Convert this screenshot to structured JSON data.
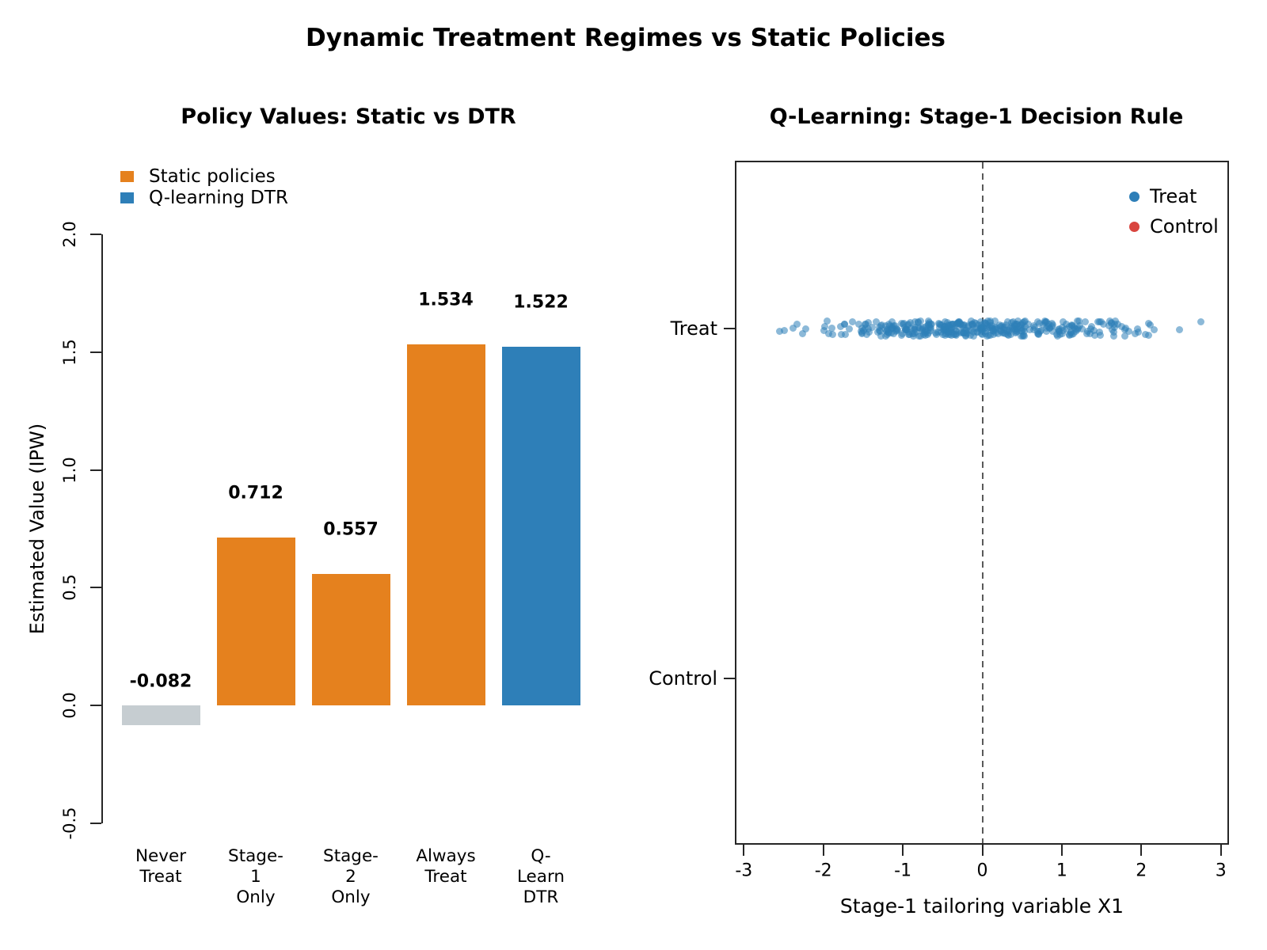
{
  "main_title": "Dynamic Treatment Regimes vs Static Policies",
  "left_chart": {
    "title": "Policy Values: Static vs DTR",
    "ylabel": "Estimated Value (IPW)",
    "legend": [
      {
        "label": "Static policies",
        "color": "#E5811E"
      },
      {
        "label": "Q-learning DTR",
        "color": "#2E7FB8"
      }
    ],
    "ytick_labels": [
      "2.0",
      "1.5",
      "1.0",
      "0.5",
      "0.0",
      "-0.5"
    ]
  },
  "right_chart": {
    "title": "Q-Learning: Stage-1 Decision Rule",
    "xlabel": "Stage-1 tailoring variable X1",
    "xtick_labels": [
      "-3",
      "-2",
      "-1",
      "0",
      "1",
      "2",
      "3"
    ],
    "ytick_labels": [
      "Treat",
      "Control"
    ],
    "legend": [
      {
        "label": "Treat",
        "color": "#2E7FB8"
      },
      {
        "label": "Control",
        "color": "#D9453F"
      }
    ]
  },
  "chart_data": [
    {
      "type": "bar",
      "title": "Policy Values: Static vs DTR",
      "categories": [
        [
          "Never",
          "Treat"
        ],
        [
          "Stage-1",
          "Only"
        ],
        [
          "Stage-2",
          "Only"
        ],
        [
          "Always",
          "Treat"
        ],
        [
          "Q-Learn",
          "DTR"
        ]
      ],
      "values": [
        -0.082,
        0.712,
        0.557,
        1.534,
        1.522
      ],
      "value_labels": [
        "-0.082",
        "0.712",
        "0.557",
        "1.534",
        "1.522"
      ],
      "bar_colors": [
        "#C6CDD1",
        "#E5811E",
        "#E5811E",
        "#E5811E",
        "#2E7FB8"
      ],
      "ylabel": "Estimated Value (IPW)",
      "xlabel": "",
      "ylim": [
        -0.5,
        2.0
      ],
      "yticks": [
        2.0,
        1.5,
        1.0,
        0.5,
        0.0,
        -0.5
      ],
      "grid": false,
      "legend_entries": [
        "Static policies",
        "Q-learning DTR"
      ],
      "legend_position": "upper left"
    },
    {
      "type": "scatter",
      "title": "Q-Learning: Stage-1 Decision Rule",
      "xlabel": "Stage-1 tailoring variable X1",
      "ylabel": "",
      "xlim": [
        -3.1,
        3.1
      ],
      "xticks": [
        -3,
        -2,
        -1,
        0,
        1,
        2,
        3
      ],
      "y_categories": [
        "Control",
        "Treat"
      ],
      "ylim": [
        -0.5,
        1.5
      ],
      "decision_boundary_x": 0,
      "grid": false,
      "legend_position": "upper right",
      "series": [
        {
          "name": "Treat",
          "color": "#2E7FB8",
          "assigned_row": "Treat",
          "n_points": 400,
          "x_distribution": "normal(mean 0, sd ~1), observed range [-2.88, 2.88]",
          "note": "stage-1 Q-learning rule assigns Treat to every subject regardless of X1"
        },
        {
          "name": "Control",
          "color": "#D9453F",
          "assigned_row": "Control",
          "n_points": 0,
          "note": "no subjects assigned Control at stage 1"
        }
      ],
      "render_params": {
        "seed": 42,
        "sigma": 1.05,
        "clip": 2.88,
        "y_jitter_units": 0.022,
        "alpha": 0.55
      }
    }
  ]
}
